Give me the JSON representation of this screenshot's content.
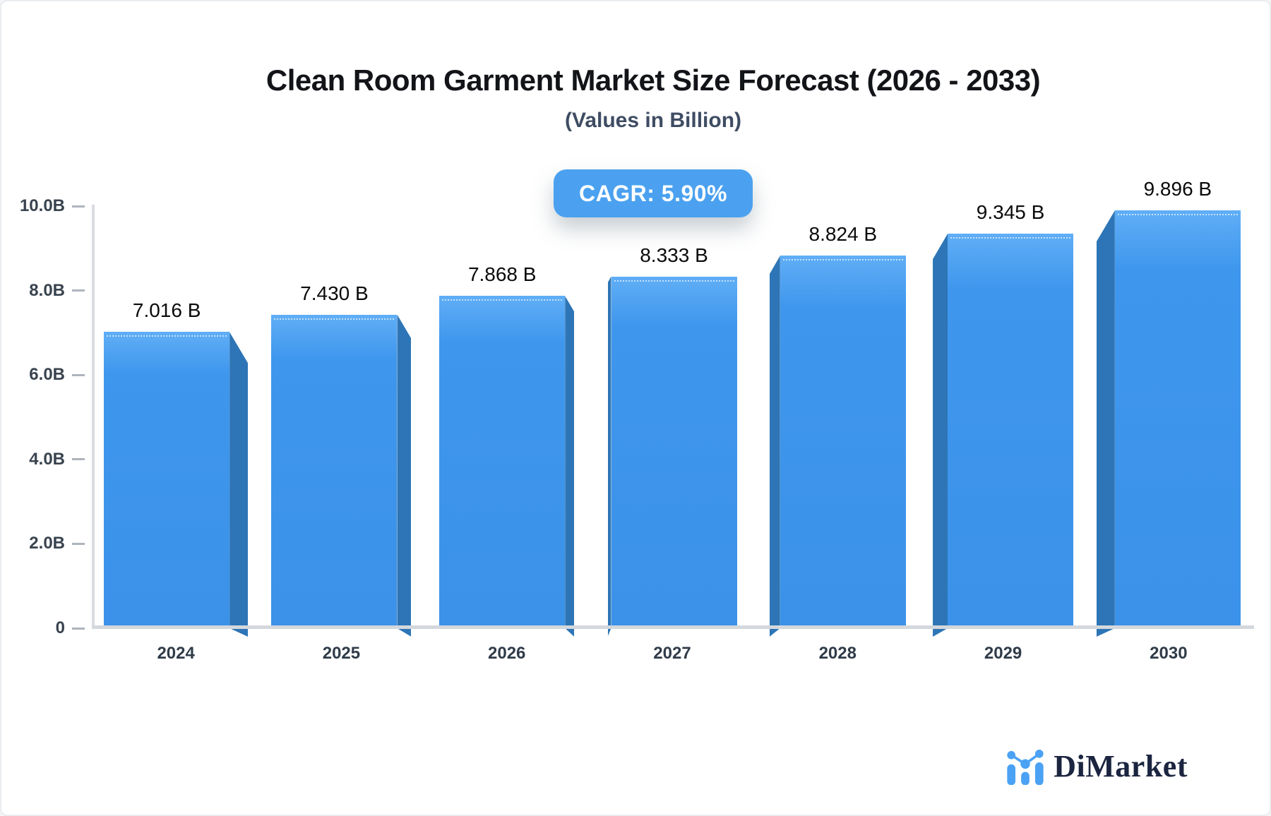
{
  "header": {
    "title": "Clean Room Garment Market Size Forecast (2026 - 2033)",
    "subtitle": "(Values in Billion)"
  },
  "badge": {
    "label": "CAGR: 5.90%",
    "bg": "#4ba1ef",
    "text_color": "#ffffff"
  },
  "chart_data": {
    "type": "bar",
    "title": "Clean Room Garment Market Size Forecast (2026 - 2033)",
    "subtitle": "(Values in Billion)",
    "categories": [
      "2024",
      "2025",
      "2026",
      "2027",
      "2028",
      "2029",
      "2030"
    ],
    "values": [
      7.016,
      7.43,
      7.868,
      8.333,
      8.824,
      9.345,
      9.896
    ],
    "value_labels": [
      "7.016 B",
      "7.430 B",
      "7.868 B",
      "8.333 B",
      "8.824 B",
      "9.345 B",
      "9.896 B"
    ],
    "annotation": "CAGR: 5.90%",
    "xlabel": "",
    "ylabel": "",
    "ylim": [
      0,
      10
    ],
    "yticks": [
      {
        "value": 10,
        "label": "10.0B"
      },
      {
        "value": 8,
        "label": "8.0B"
      },
      {
        "value": 6,
        "label": "6.0B"
      },
      {
        "value": 4,
        "label": "4.0B"
      },
      {
        "value": 2,
        "label": "2.0B"
      },
      {
        "value": 0,
        "label": "0"
      }
    ],
    "grid": false,
    "legend": false,
    "bar_gradient_top": "#60aef6",
    "bar_color": "#3f97ed",
    "bar_color_bottom": "#3b92e8",
    "bar_side_color": "#2d75b6"
  },
  "logo": {
    "text": "DiMarket",
    "icon": "mini-bar-chart-logo-icon",
    "icon_color": "#4ba2f4",
    "text_color": "#1b2540"
  }
}
